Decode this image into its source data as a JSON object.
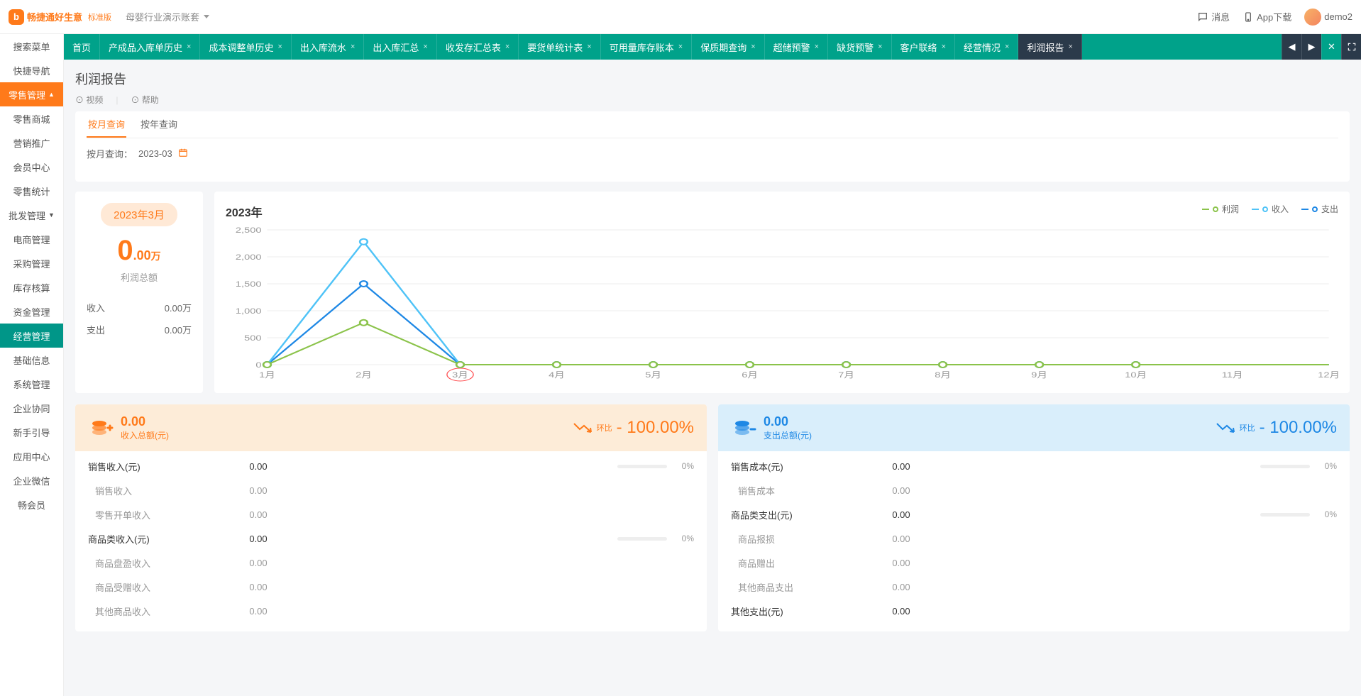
{
  "topbar": {
    "brand": "畅捷通好生意",
    "edition": "标准版",
    "account": "母婴行业演示账套",
    "msg": "消息",
    "appdl": "App下载",
    "user": "demo2"
  },
  "sidebar": {
    "items": [
      {
        "label": "搜索菜单",
        "k": "search"
      },
      {
        "label": "快捷导航",
        "k": "quick"
      },
      {
        "label": "零售管理",
        "k": "retail",
        "activeOrange": true,
        "caret": "▲"
      },
      {
        "label": "零售商城",
        "k": "retail-mall"
      },
      {
        "label": "营销推广",
        "k": "marketing"
      },
      {
        "label": "会员中心",
        "k": "member"
      },
      {
        "label": "零售统计",
        "k": "retail-stats"
      },
      {
        "label": "批发管理",
        "k": "wholesale",
        "caret": "▼"
      },
      {
        "label": "电商管理",
        "k": "ecom"
      },
      {
        "label": "采购管理",
        "k": "purchase"
      },
      {
        "label": "库存核算",
        "k": "inventory"
      },
      {
        "label": "资金管理",
        "k": "fund"
      },
      {
        "label": "经营管理",
        "k": "operate",
        "activeTeal": true
      },
      {
        "label": "基础信息",
        "k": "basic"
      },
      {
        "label": "系统管理",
        "k": "system"
      },
      {
        "label": "企业协同",
        "k": "enterprise"
      },
      {
        "label": "新手引导",
        "k": "guide"
      },
      {
        "label": "应用中心",
        "k": "apps"
      },
      {
        "label": "企业微信",
        "k": "wecom"
      },
      {
        "label": "畅会员",
        "k": "vip"
      }
    ]
  },
  "tabs": {
    "items": [
      {
        "label": "首页",
        "closable": false
      },
      {
        "label": "产成品入库单历史",
        "closable": true
      },
      {
        "label": "成本调整单历史",
        "closable": true
      },
      {
        "label": "出入库流水",
        "closable": true
      },
      {
        "label": "出入库汇总",
        "closable": true
      },
      {
        "label": "收发存汇总表",
        "closable": true
      },
      {
        "label": "要货单统计表",
        "closable": true
      },
      {
        "label": "可用量库存账本",
        "closable": true
      },
      {
        "label": "保质期查询",
        "closable": true
      },
      {
        "label": "超储预警",
        "closable": true
      },
      {
        "label": "缺货预警",
        "closable": true
      },
      {
        "label": "客户联络",
        "closable": true
      },
      {
        "label": "经营情况",
        "closable": true
      },
      {
        "label": "利润报告",
        "closable": true,
        "active": true
      }
    ]
  },
  "page": {
    "title": "利润报告",
    "video": "视频",
    "help": "帮助",
    "subtabs": {
      "month": "按月查询",
      "year": "按年查询"
    },
    "queryLabel": "按月查询：",
    "queryValue": "2023-03"
  },
  "summary": {
    "monthPill": "2023年3月",
    "bigInt": "0",
    "bigDec": ".00",
    "bigUnit": "万",
    "profitLabel": "利润总额",
    "income": {
      "label": "收入",
      "value": "0.00万"
    },
    "expense": {
      "label": "支出",
      "value": "0.00万"
    }
  },
  "chart": {
    "title": "2023年",
    "legend": {
      "profit": "利润",
      "income": "收入",
      "expense": "支出"
    },
    "colors": {
      "profit": "#8bc34a",
      "income": "#4fc3f7",
      "expense": "#1e88e5",
      "grid": "#eeeeee",
      "axis": "#999999",
      "bg": "#ffffff"
    },
    "xcats": [
      "1月",
      "2月",
      "3月",
      "4月",
      "5月",
      "6月",
      "7月",
      "8月",
      "9月",
      "10月",
      "11月",
      "12月"
    ],
    "xHighlight": 2,
    "yticks": [
      0,
      500,
      1000,
      1500,
      2000,
      2500
    ],
    "ylim": [
      0,
      2500
    ],
    "series": {
      "profit": [
        0,
        780,
        0,
        0,
        0,
        0,
        0,
        0,
        0,
        0,
        0,
        0
      ],
      "income": [
        0,
        2280,
        0,
        0,
        0,
        0,
        0,
        0,
        0,
        0,
        0,
        0
      ],
      "expense": [
        0,
        1500,
        0,
        0,
        0,
        0,
        0,
        0,
        0,
        0,
        0,
        0
      ]
    },
    "lineWidth": 2,
    "markerSize": 4,
    "xlimDataPoints": 9
  },
  "panels": {
    "income": {
      "headValue": "0.00",
      "headSub": "收入总额(元)",
      "trendLabel": "环比",
      "trendPct": "- 100.00%",
      "color": "#ff7a1a",
      "rows": [
        {
          "label": "销售收入(元)",
          "val": "0.00",
          "pct": "0%",
          "sub": false,
          "bar": true
        },
        {
          "label": "销售收入",
          "val": "0.00",
          "sub": true
        },
        {
          "label": "零售开单收入",
          "val": "0.00",
          "sub": true
        },
        {
          "label": "商品类收入(元)",
          "val": "0.00",
          "pct": "0%",
          "sub": false,
          "bar": true
        },
        {
          "label": "商品盘盈收入",
          "val": "0.00",
          "sub": true
        },
        {
          "label": "商品受赠收入",
          "val": "0.00",
          "sub": true
        },
        {
          "label": "其他商品收入",
          "val": "0.00",
          "sub": true
        }
      ]
    },
    "expense": {
      "headValue": "0.00",
      "headSub": "支出总额(元)",
      "trendLabel": "环比",
      "trendPct": "- 100.00%",
      "color": "#1e88e5",
      "rows": [
        {
          "label": "销售成本(元)",
          "val": "0.00",
          "pct": "0%",
          "sub": false,
          "bar": true
        },
        {
          "label": "销售成本",
          "val": "0.00",
          "sub": true
        },
        {
          "label": "商品类支出(元)",
          "val": "0.00",
          "pct": "0%",
          "sub": false,
          "bar": true
        },
        {
          "label": "商品报损",
          "val": "0.00",
          "sub": true
        },
        {
          "label": "商品赠出",
          "val": "0.00",
          "sub": true
        },
        {
          "label": "其他商品支出",
          "val": "0.00",
          "sub": true
        },
        {
          "label": "其他支出(元)",
          "val": "0.00",
          "sub": false
        }
      ]
    }
  }
}
